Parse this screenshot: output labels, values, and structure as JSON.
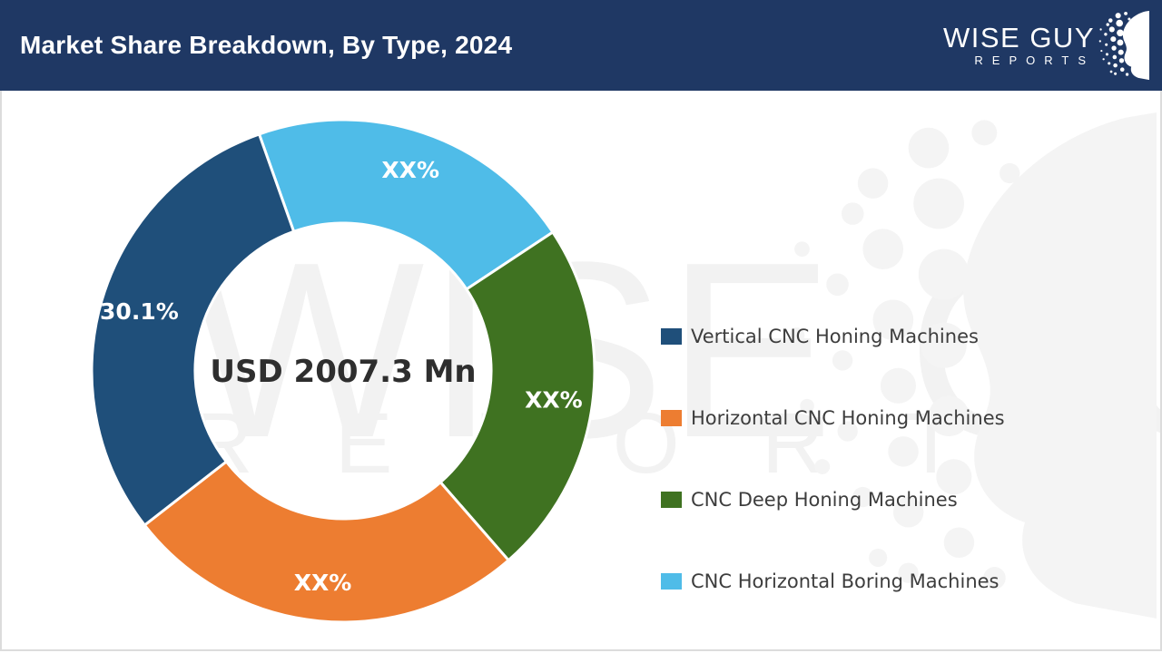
{
  "header": {
    "title": "Market Share Breakdown, By Type, 2024",
    "logo": {
      "line1": "WISE GUY",
      "line2": "REPORTS"
    }
  },
  "watermark": {
    "line1": "WISE GUY",
    "line2": "R E P O R T S"
  },
  "chart_data": {
    "type": "pie",
    "subtype": "donut",
    "title": "Market Share Breakdown, By Type, 2024",
    "center_label": "USD 2007.3 Mn",
    "start_angle_deg": -19.5,
    "clockwise": true,
    "donut_hole_ratio": 0.59,
    "slice_label_color": "#ffffff",
    "center_label_color": "#2e2e2e",
    "segments": [
      {
        "label": "CNC Horizontal Boring Machines",
        "display_label": "XX%",
        "percent": 21.1,
        "color": "#4FBCE8"
      },
      {
        "label": "CNC Deep Honing Machines",
        "display_label": "XX%",
        "percent": 22.9,
        "color": "#3F7221"
      },
      {
        "label": "Horizontal CNC Honing Machines",
        "display_label": "XX%",
        "percent": 25.9,
        "color": "#ED7D31"
      },
      {
        "label": "Vertical CNC Honing Machines",
        "display_label": "30.1%",
        "percent": 30.1,
        "color": "#1F4F7A"
      }
    ],
    "legend": {
      "position": "right",
      "items": [
        {
          "label": "Vertical CNC Honing Machines",
          "color": "#1F4F7A"
        },
        {
          "label": "Horizontal CNC Honing Machines",
          "color": "#ED7D31"
        },
        {
          "label": "CNC Deep Honing Machines",
          "color": "#3F7221"
        },
        {
          "label": "CNC Horizontal Boring Machines",
          "color": "#4FBCE8"
        }
      ]
    }
  },
  "colors": {
    "header_bg": "#1F3864",
    "canvas_border": "#dcdcdc",
    "watermark": "#f2f2f2",
    "legend_text": "#3d3d3d"
  }
}
